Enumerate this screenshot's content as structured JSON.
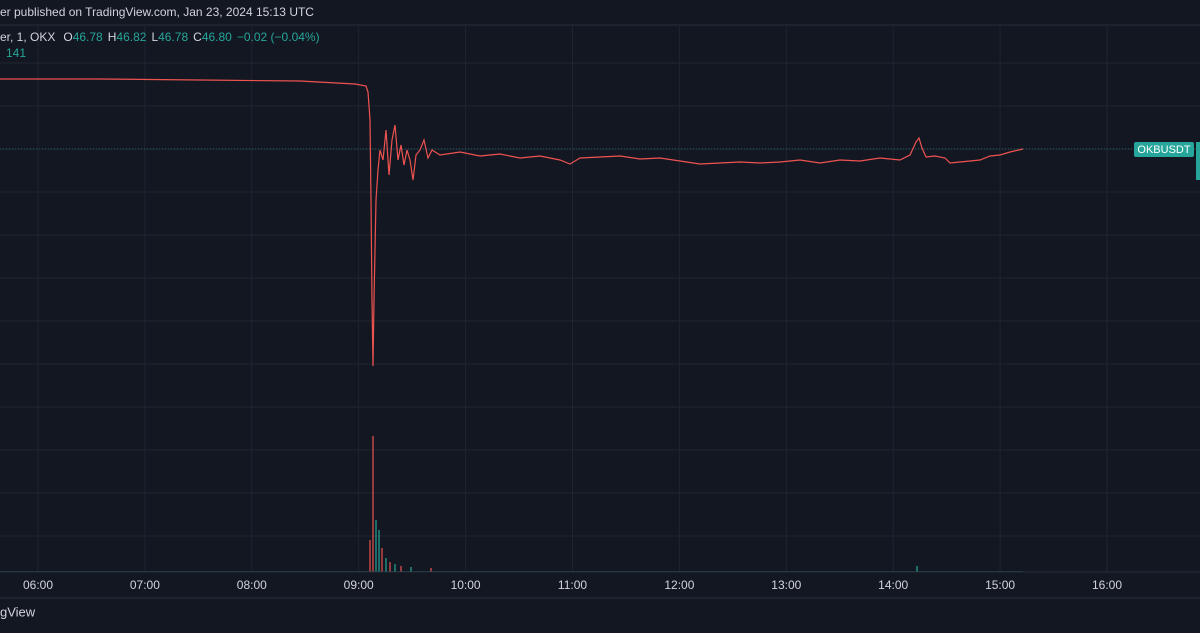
{
  "header": {
    "published": "er published on TradingView.com, Jan 23, 2024 15:13 UTC"
  },
  "legend": {
    "symbol": "er, 1, OKX",
    "items": [
      {
        "label": "O",
        "value": "46.78"
      },
      {
        "label": "H",
        "value": "46.82"
      },
      {
        "label": "L",
        "value": "46.78"
      },
      {
        "label": "C",
        "value": "46.80"
      }
    ],
    "change": "−0.02 (−0.04%)",
    "volume": "141"
  },
  "price_tag": "OKBUSDT",
  "x_axis": {
    "labels": [
      "06:00",
      "07:00",
      "08:00",
      "09:00",
      "10:00",
      "11:00",
      "12:00",
      "13:00",
      "14:00",
      "15:00",
      "16:00"
    ]
  },
  "footer": {
    "brand": "gView"
  }
}
